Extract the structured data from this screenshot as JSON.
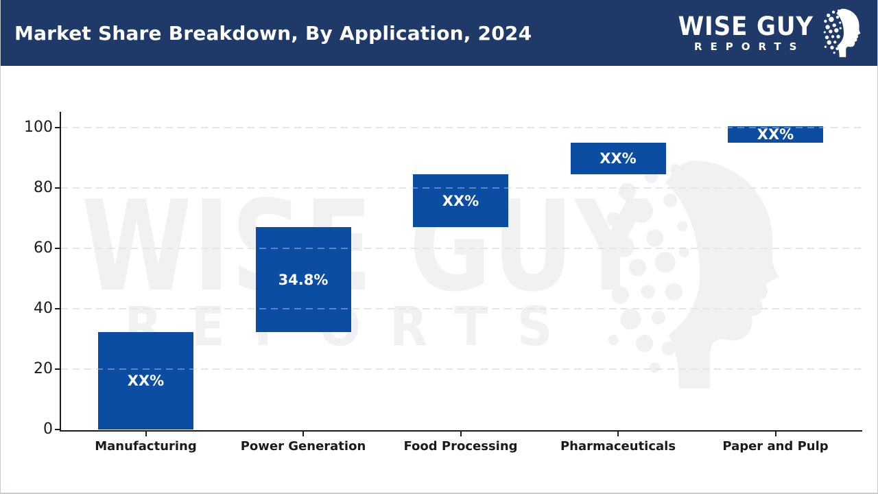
{
  "header": {
    "title": "Market Share Breakdown, By Application, 2024",
    "logo": {
      "brand": "WISE GUY",
      "sub": "REPORTS"
    }
  },
  "watermark": {
    "brand": "WISE GUY",
    "sub": "REPORTS"
  },
  "colors": {
    "header_bg": "#1f3a68",
    "bar": "#0b4da2",
    "bar_label": "#ffffff",
    "grid": "#d9d9d9",
    "axis": "#1a1a1a",
    "tick_text": "#1a1a1a",
    "watermark": "#f1f1f4",
    "title_text": "#ffffff"
  },
  "chart_data": {
    "type": "bar",
    "subtype": "floating-waterfall",
    "title": "Market Share Breakdown, By Application, 2024",
    "xlabel": "",
    "ylabel": "",
    "categories": [
      "Manufacturing",
      "Power Generation",
      "Food Processing",
      "Pharmaceuticals",
      "Paper and Pulp"
    ],
    "bars": [
      {
        "category": "Manufacturing",
        "start": 0,
        "end": 32.2,
        "label": "XX%"
      },
      {
        "category": "Power Generation",
        "start": 32.2,
        "end": 67.0,
        "label": "34.8%"
      },
      {
        "category": "Food Processing",
        "start": 67.0,
        "end": 84.5,
        "label": "XX%"
      },
      {
        "category": "Pharmaceuticals",
        "start": 84.5,
        "end": 95.0,
        "label": "XX%"
      },
      {
        "category": "Paper and Pulp",
        "start": 95.0,
        "end": 100.4,
        "label": "XX%"
      }
    ],
    "yticks": [
      0,
      20,
      40,
      60,
      80,
      100
    ],
    "ylim": [
      0,
      105
    ],
    "grid": "horizontal-dashed",
    "legend": "none"
  }
}
